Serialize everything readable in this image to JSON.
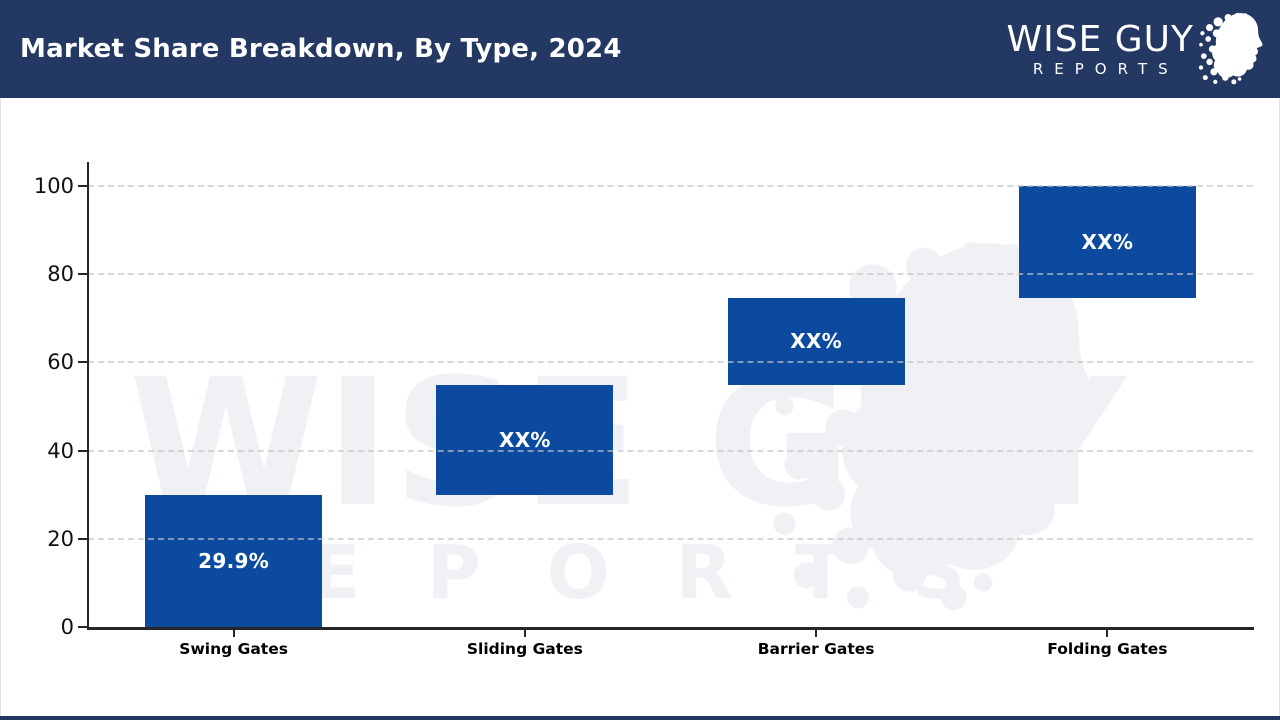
{
  "header": {
    "title": "Market Share Breakdown, By Type, 2024",
    "logo": {
      "line1": "WISE GUY",
      "line2": "REPORTS"
    }
  },
  "watermark": {
    "line1": "WISE GUY",
    "line2": "REPORTS"
  },
  "chart_data": {
    "type": "bar",
    "subtype": "waterfall",
    "title": "Market Share Breakdown, By Type, 2024",
    "xlabel": "",
    "ylabel": "",
    "categories": [
      "Swing Gates",
      "Sliding Gates",
      "Barrier Gates",
      "Folding Gates"
    ],
    "segments": [
      {
        "category": "Swing Gates",
        "start": 0,
        "end": 29.9,
        "label": "29.9%"
      },
      {
        "category": "Sliding Gates",
        "start": 29.9,
        "end": 54.9,
        "label": "XX%"
      },
      {
        "category": "Barrier Gates",
        "start": 54.9,
        "end": 74.7,
        "label": "XX%"
      },
      {
        "category": "Folding Gates",
        "start": 74.7,
        "end": 100,
        "label": "XX%"
      }
    ],
    "ylim": [
      0,
      100
    ],
    "yticks": [
      0,
      20,
      40,
      60,
      80,
      100
    ],
    "grid": "horizontal-dashed",
    "legend": "none"
  },
  "colors": {
    "header-bg": "#233862",
    "bar": "#0b4a9e",
    "axis": "#262626",
    "grid": "#c4c4c4",
    "watermark": "#f0f1f4",
    "bar-label": "#ffffff",
    "tick-label": "#111111"
  }
}
